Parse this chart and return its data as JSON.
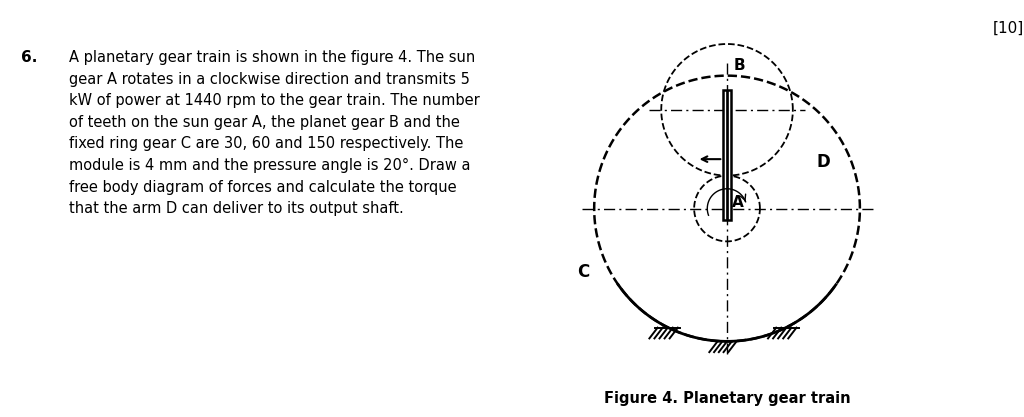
{
  "question_number": "6.",
  "question_text": "A planetary gear train is shown in the figure 4. The sun\ngear A rotates in a clockwise direction and transmits 5\nkW of power at 1440 rpm to the gear train. The number\nof teeth on the sun gear A, the planet gear B and the\nfixed ring gear C are 30, 60 and 150 respectively. The\nmodule is 4 mm and the pressure angle is 20°. Draw a\nfree body diagram of forces and calculate the torque\nthat the arm D can deliver to its output shaft.",
  "marks": "[10]",
  "figure_caption": "Figure 4. Planetary gear train",
  "label_A": "A",
  "label_B": "B",
  "label_C": "C",
  "label_D": "D",
  "bg_color": "#ffffff",
  "line_color": "#000000"
}
